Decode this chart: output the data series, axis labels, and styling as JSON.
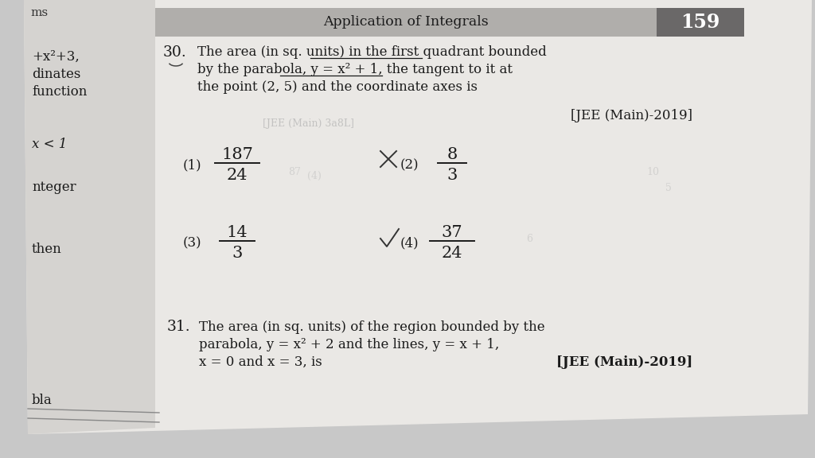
{
  "bg_outer": "#c8c8c8",
  "bg_page": "#e8e6e3",
  "bg_left_strip": "#b8b6b3",
  "header_text": "Application of Integrals",
  "header_num": "159",
  "header_bg": "#a0a0a0",
  "header_num_bg": "#6a6a6a",
  "left_texts": [
    "+x²+3,",
    "dinates",
    "function"
  ],
  "left_extras": [
    "x < 1",
    "nteger",
    "then",
    "bla"
  ],
  "ms_text": "ms",
  "q30_label": "30.",
  "q30_line1": "The area (in sq. units) in the first quadrant bounded",
  "q30_line2": "by the parabola, y = x² + 1, the tangent to it at",
  "q30_line3": "the point (2, 5) and the coordinate axes is",
  "jee_tag_30": "[JEE (Main)-2019]",
  "opt1_n": "187",
  "opt1_d": "24",
  "opt2_n": "8",
  "opt2_d": "3",
  "opt3_n": "14",
  "opt3_d": "3",
  "opt4_n": "37",
  "opt4_d": "24",
  "faint_text": "[JEE (Main) 3a8L]",
  "q31_label": "31.",
  "q31_line1": "The area (in sq. units) of the region bounded by the",
  "q31_line2": "parabola, y = x² + 2 and the lines, y = x + 1,",
  "q31_line3": "x = 0 and x = 3, is",
  "jee_tag_31": "[JEE (Main)-2019]",
  "text_color": "#1a1a1a",
  "text_color_light": "#555555"
}
